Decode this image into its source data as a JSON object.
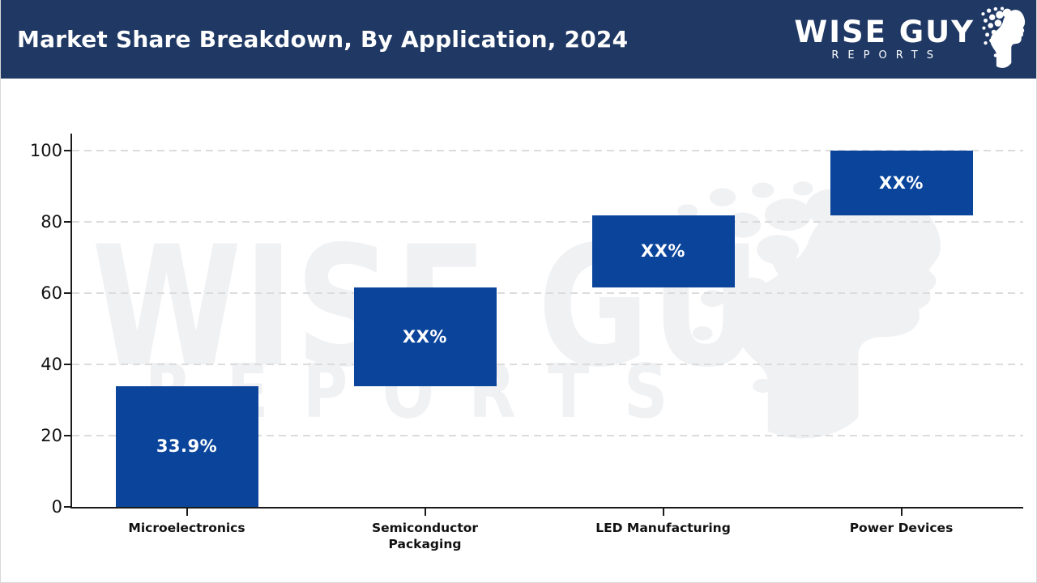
{
  "header": {
    "title": "Market Share Breakdown, By Application, 2024",
    "bg_color": "#1f3864",
    "logo": {
      "line1": "WISE GUY",
      "line2": "REPORTS"
    }
  },
  "watermark": {
    "line1": "WISE GUY",
    "line2": "REPORTS"
  },
  "chart_data": {
    "type": "bar",
    "subtype": "waterfall-stacked-segments",
    "title": "Market Share Breakdown, By Application, 2024",
    "categories": [
      "Microelectronics",
      "Semiconductor Packaging",
      "LED Manufacturing",
      "Power Devices"
    ],
    "segments": [
      {
        "category": "Microelectronics",
        "category_lines": [
          "Microelectronics"
        ],
        "start": 0,
        "end": 33.9,
        "label": "33.9%"
      },
      {
        "category": "Semiconductor Packaging",
        "category_lines": [
          "Semiconductor",
          "Packaging"
        ],
        "start": 33.9,
        "end": 61.7,
        "label": "XX%"
      },
      {
        "category": "LED Manufacturing",
        "category_lines": [
          "LED Manufacturing"
        ],
        "start": 61.7,
        "end": 81.9,
        "label": "XX%"
      },
      {
        "category": "Power Devices",
        "category_lines": [
          "Power Devices"
        ],
        "start": 81.9,
        "end": 100,
        "label": "XX%"
      }
    ],
    "ylim": [
      0,
      100
    ],
    "yticks": [
      0,
      20,
      40,
      60,
      80,
      100
    ],
    "grid": "horizontal-dashed",
    "legend": "none",
    "bar_color": "#0a459b",
    "bar_label_color": "#ffffff",
    "axis_color": "#1a1a1a",
    "gridline_color": "#dcdcdc"
  }
}
